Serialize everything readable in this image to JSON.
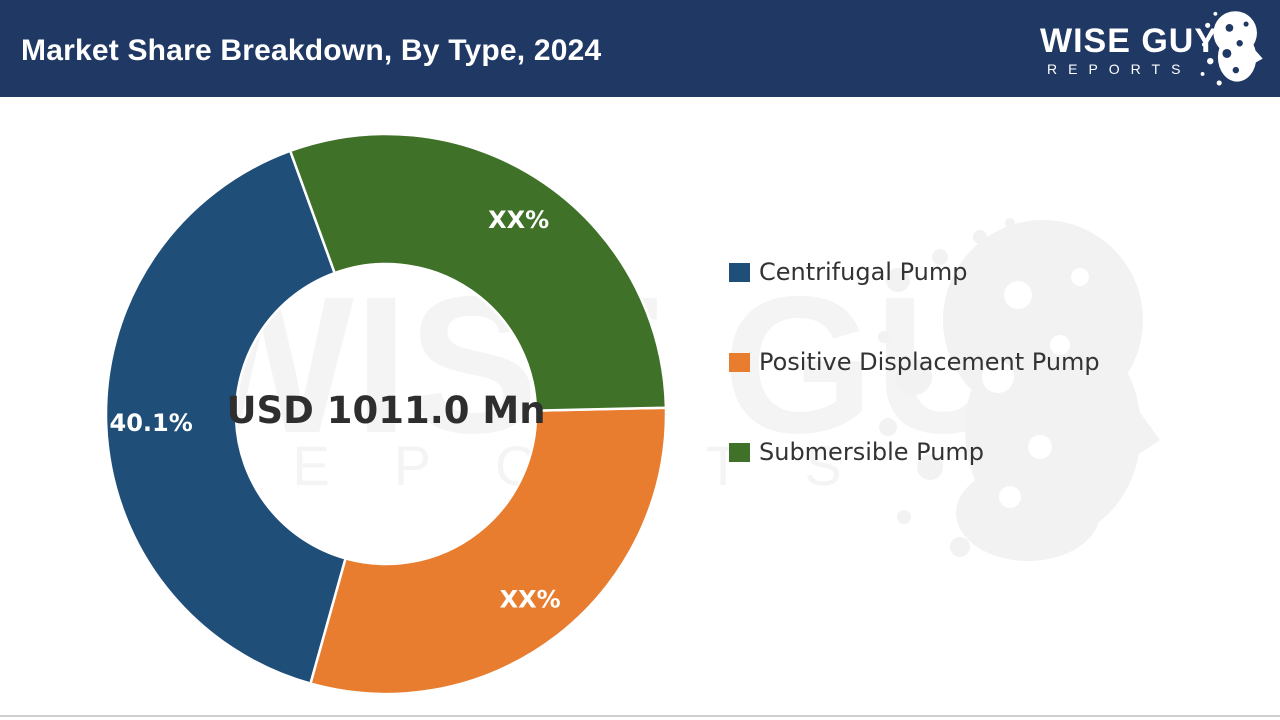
{
  "header": {
    "title": "Market Share Breakdown, By Type, 2024",
    "logo": {
      "line1": "WISE GUY",
      "line2": "REPORTS"
    }
  },
  "watermark": {
    "line1": "WISE GUY",
    "line2": "REPORTS"
  },
  "chart_data": {
    "type": "pie",
    "subtype": "donut",
    "title": "Market Share Breakdown, By Type, 2024",
    "center_label": "USD 1011.0 Mn",
    "start_angle": 110,
    "direction": "counterclockwise",
    "legend_position": "right",
    "segments": [
      {
        "label": "Centrifugal Pump",
        "value": 40.1,
        "display": "40.1%",
        "color": "#1F4E79"
      },
      {
        "label": "Positive Displacement Pump",
        "value": 29.7,
        "display": "XX%",
        "color": "#E87D2F"
      },
      {
        "label": "Submersible Pump",
        "value": 30.2,
        "display": "XX%",
        "color": "#3F7128"
      }
    ]
  },
  "colors": {
    "header_bg": "#203864",
    "center_text": "#2E2E2E",
    "legend_text": "#333333",
    "watermark": "#F4F4F4",
    "slice_separator": "#FFFFFF"
  }
}
